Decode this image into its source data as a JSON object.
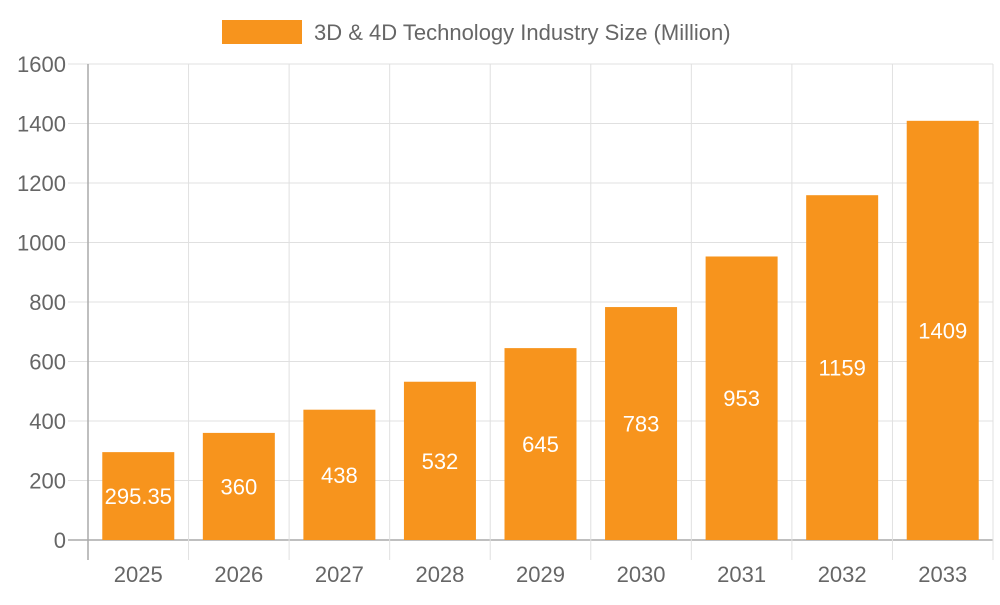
{
  "chart_data": {
    "type": "bar",
    "title": "",
    "xlabel": "",
    "ylabel": "",
    "categories": [
      "2025",
      "2026",
      "2027",
      "2028",
      "2029",
      "2030",
      "2031",
      "2032",
      "2033"
    ],
    "series": [
      {
        "name": "3D & 4D Technology Industry Size (Million)",
        "values": [
          295.35,
          360,
          438,
          532,
          645,
          783,
          953,
          1159,
          1409
        ],
        "color": "#f7941d"
      }
    ],
    "data_labels": [
      "295.35",
      "360",
      "438",
      "532",
      "645",
      "783",
      "953",
      "1159",
      "1409"
    ],
    "ylim": [
      0,
      1600
    ],
    "yticks": [
      0,
      200,
      400,
      600,
      800,
      1000,
      1200,
      1400,
      1600
    ],
    "grid": true,
    "legend_position": "top"
  }
}
